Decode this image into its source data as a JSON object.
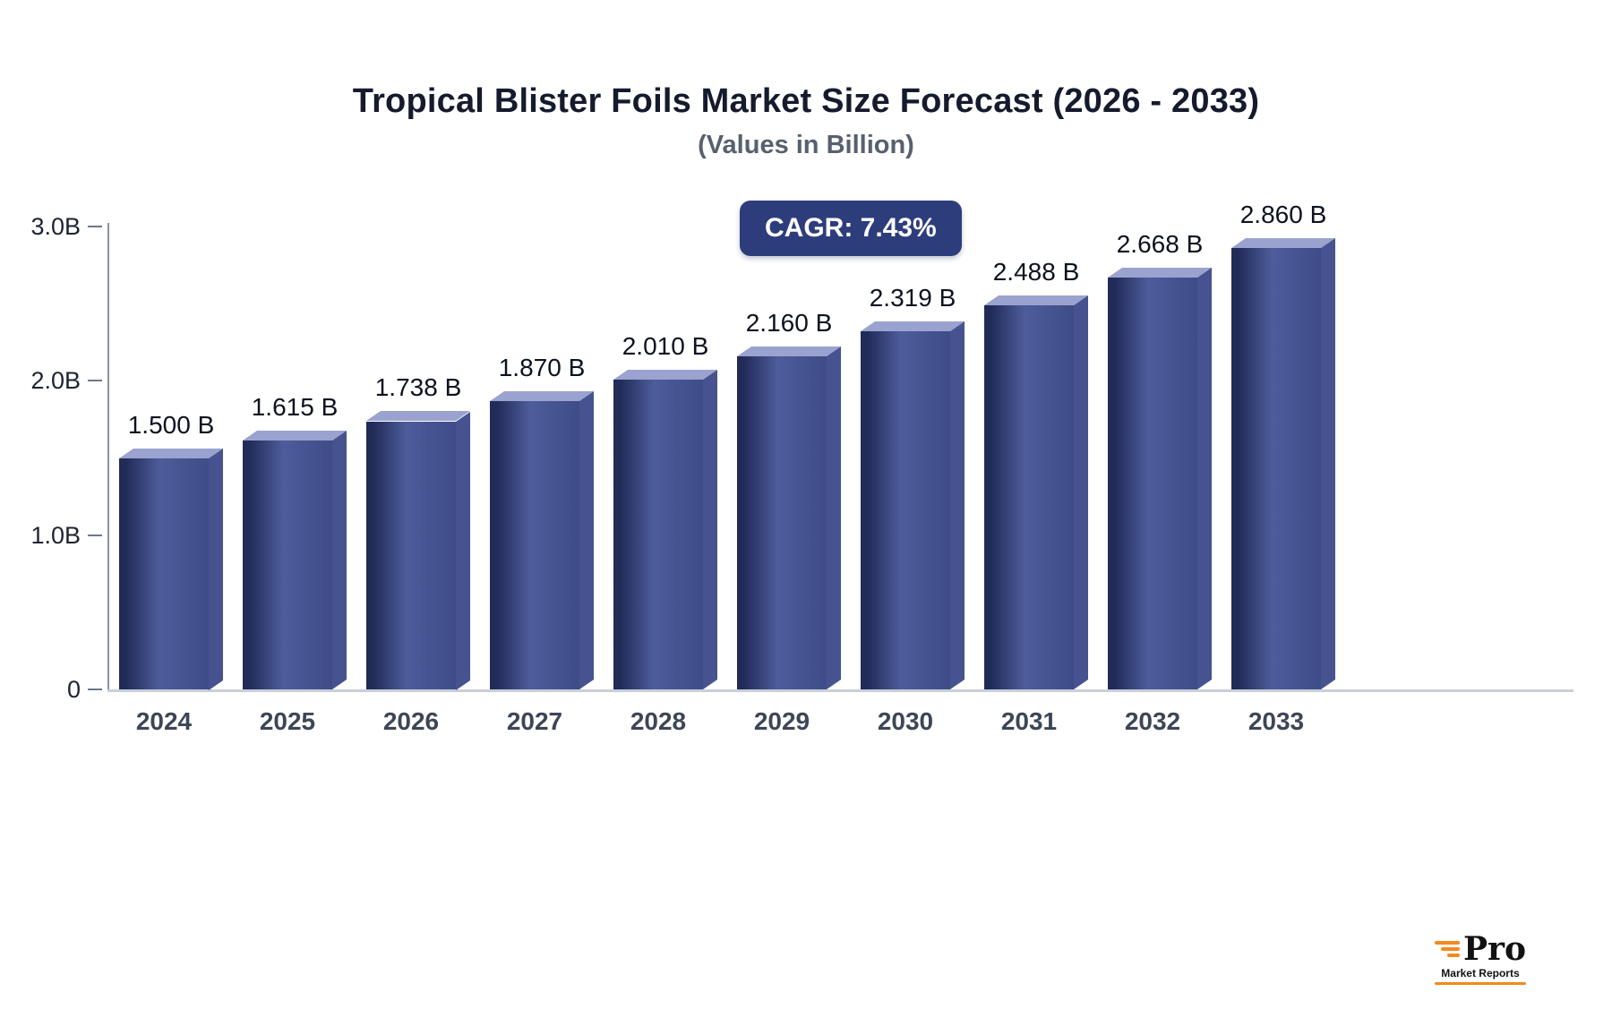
{
  "header": {
    "title": "Tropical Blister Foils Market Size Forecast (2026 - 2033)",
    "subtitle": "(Values in Billion)",
    "cagr_badge": "CAGR: 7.43%"
  },
  "chart_data": {
    "type": "bar",
    "title": "Tropical Blister Foils Market Size Forecast (2026 - 2033)",
    "subtitle": "(Values in Billion)",
    "annotation": "CAGR: 7.43%",
    "categories": [
      "2024",
      "2025",
      "2026",
      "2027",
      "2028",
      "2029",
      "2030",
      "2031",
      "2032",
      "2033"
    ],
    "values": [
      1.5,
      1.615,
      1.738,
      1.87,
      2.01,
      2.16,
      2.319,
      2.488,
      2.668,
      2.86
    ],
    "value_labels": [
      "1.500 B",
      "1.615 B",
      "1.738 B",
      "1.870 B",
      "2.010 B",
      "2.160 B",
      "2.319 B",
      "2.488 B",
      "2.668 B",
      "2.860 B"
    ],
    "xlabel": "",
    "ylabel": "",
    "ylim": [
      0,
      3.0
    ],
    "yticks": [
      {
        "label": "3.0B",
        "value": 3.0
      },
      {
        "label": "2.0B",
        "value": 2.0
      },
      {
        "label": "1.0B",
        "value": 1.0
      },
      {
        "label": "0",
        "value": 0
      }
    ],
    "grid": false,
    "legend": "none",
    "bar_colors": {
      "front_dark": "#212b58",
      "front_mid": "#4d5c9b",
      "front_light": "#3e4c87",
      "side": "#465390",
      "top": "#9aa3cf"
    }
  },
  "logo": {
    "brand": "Pro",
    "subtext": "Market Reports",
    "accent": "#f28a1e"
  }
}
